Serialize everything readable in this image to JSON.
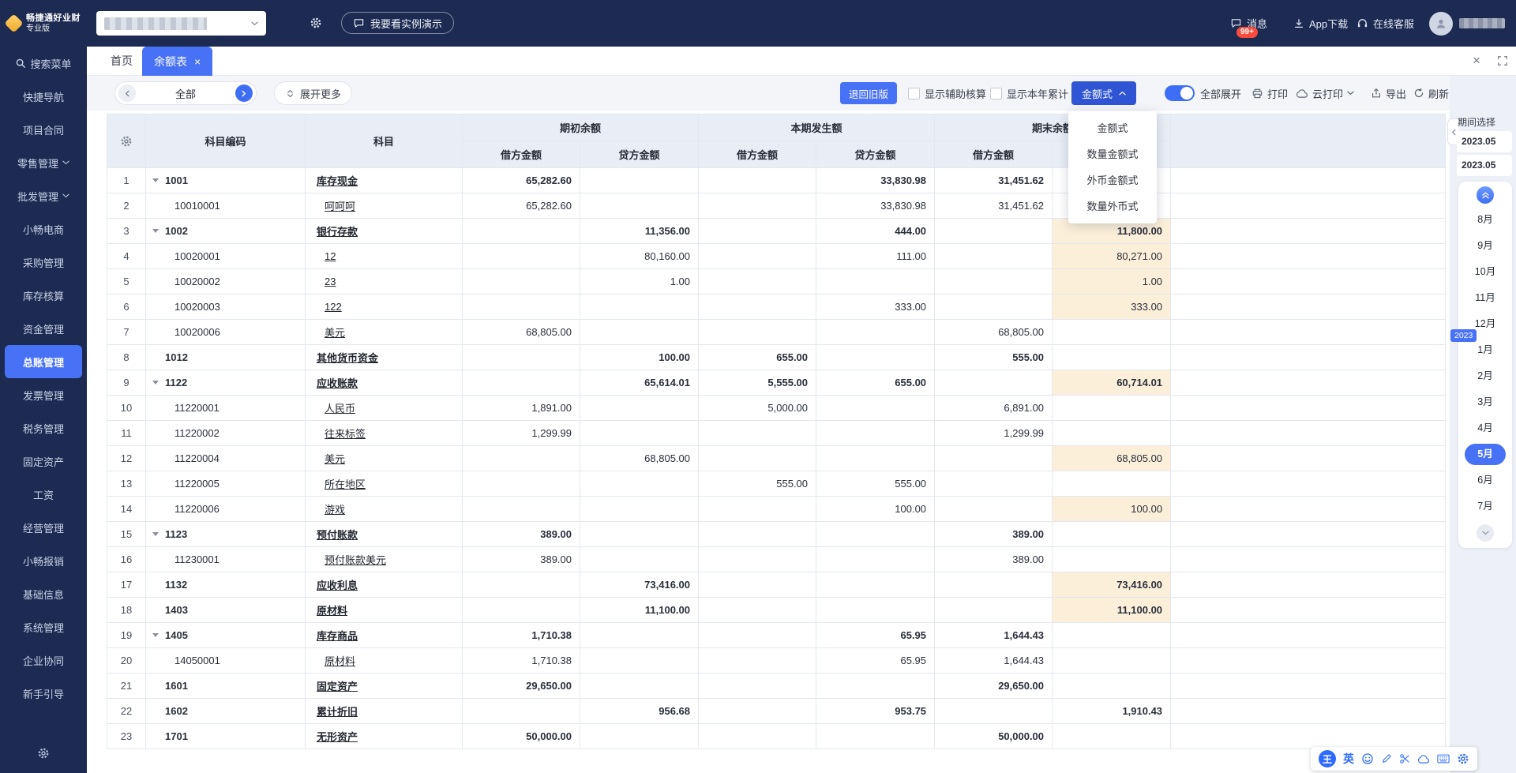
{
  "colors": {
    "accent": "#4872f5",
    "navy": "#1d2b52",
    "highlight_cell": "#fcefda",
    "format_button": "#2f54d4",
    "badge_red": "#fa4b3c"
  },
  "app": {
    "logo_title": "畅捷通好业财",
    "logo_subtitle": "专业版"
  },
  "topbar": {
    "demo_label": "我要看实例演示",
    "messages_label": "消息",
    "messages_badge": "99+",
    "download_label": "App下载",
    "support_label": "在线客服"
  },
  "sidebar": {
    "items": [
      {
        "label": "搜索菜单",
        "icon": "search"
      },
      {
        "label": "快捷导航"
      },
      {
        "label": "项目合同"
      },
      {
        "label": "零售管理",
        "caret": true
      },
      {
        "label": "批发管理",
        "caret": true
      },
      {
        "label": "小畅电商"
      },
      {
        "label": "采购管理"
      },
      {
        "label": "库存核算"
      },
      {
        "label": "资金管理"
      },
      {
        "label": "总账管理",
        "active": true
      },
      {
        "label": "发票管理"
      },
      {
        "label": "税务管理"
      },
      {
        "label": "固定资产"
      },
      {
        "label": "工资"
      },
      {
        "label": "经营管理"
      },
      {
        "label": "小畅报销"
      },
      {
        "label": "基础信息"
      },
      {
        "label": "系统管理"
      },
      {
        "label": "企业协同"
      },
      {
        "label": "新手引导"
      }
    ]
  },
  "tabs": [
    {
      "label": "首页",
      "active": false
    },
    {
      "label": "余额表",
      "active": true
    }
  ],
  "toolbar": {
    "account_filter_value": "全部",
    "expand_more_label": "展开更多",
    "back_to_old_label": "退回旧版",
    "show_aux_label": "显示辅助核算",
    "show_ytd_label": "显示本年累计",
    "format_label": "金额式",
    "expand_all_label": "全部展开",
    "print_label": "打印",
    "cloud_print_label": "云打印",
    "export_label": "导出",
    "refresh_label": "刷新"
  },
  "format_menu": [
    "金额式",
    "数量金额式",
    "外币金额式",
    "数量外币式"
  ],
  "table": {
    "headers": {
      "code": "科目编码",
      "name": "科目",
      "debit": "借方金额",
      "credit": "贷方金额"
    },
    "groups": [
      "期初余额",
      "本期发生额",
      "期末余额"
    ],
    "rows": [
      {
        "num": 1,
        "code": "1001",
        "name": "库存现金",
        "level": 0,
        "expand": true,
        "hl": false,
        "cells": [
          "65,282.60",
          "",
          "",
          "33,830.98",
          "31,451.62",
          ""
        ]
      },
      {
        "num": 2,
        "code": "10010001",
        "name": "呵呵呵",
        "level": 1,
        "expand": false,
        "hl": false,
        "cells": [
          "65,282.60",
          "",
          "",
          "33,830.98",
          "31,451.62",
          ""
        ]
      },
      {
        "num": 3,
        "code": "1002",
        "name": "银行存款",
        "level": 0,
        "expand": true,
        "hl": true,
        "cells": [
          "",
          "11,356.00",
          "",
          "444.00",
          "",
          "11,800.00"
        ]
      },
      {
        "num": 4,
        "code": "10020001",
        "name": "12",
        "level": 1,
        "expand": false,
        "hl": true,
        "cells": [
          "",
          "80,160.00",
          "",
          "111.00",
          "",
          "80,271.00"
        ]
      },
      {
        "num": 5,
        "code": "10020002",
        "name": "23",
        "level": 1,
        "expand": false,
        "hl": true,
        "cells": [
          "",
          "1.00",
          "",
          "",
          "",
          "1.00"
        ]
      },
      {
        "num": 6,
        "code": "10020003",
        "name": "122",
        "level": 1,
        "expand": false,
        "hl": true,
        "cells": [
          "",
          "",
          "",
          "333.00",
          "",
          "333.00"
        ]
      },
      {
        "num": 7,
        "code": "10020006",
        "name": "美元",
        "level": 1,
        "expand": false,
        "hl": false,
        "cells": [
          "68,805.00",
          "",
          "",
          "",
          "68,805.00",
          ""
        ]
      },
      {
        "num": 8,
        "code": "1012",
        "name": "其他货币资金",
        "level": 0,
        "expand": false,
        "hl": false,
        "cells": [
          "",
          "100.00",
          "655.00",
          "",
          "555.00",
          ""
        ]
      },
      {
        "num": 9,
        "code": "1122",
        "name": "应收账款",
        "level": 0,
        "expand": true,
        "hl": true,
        "cells": [
          "",
          "65,614.01",
          "5,555.00",
          "655.00",
          "",
          "60,714.01"
        ]
      },
      {
        "num": 10,
        "code": "11220001",
        "name": "人民币",
        "level": 1,
        "expand": false,
        "hl": false,
        "cells": [
          "1,891.00",
          "",
          "5,000.00",
          "",
          "6,891.00",
          ""
        ]
      },
      {
        "num": 11,
        "code": "11220002",
        "name": "往来标签",
        "level": 1,
        "expand": false,
        "hl": false,
        "cells": [
          "1,299.99",
          "",
          "",
          "",
          "1,299.99",
          ""
        ]
      },
      {
        "num": 12,
        "code": "11220004",
        "name": "美元",
        "level": 1,
        "expand": false,
        "hl": true,
        "cells": [
          "",
          "68,805.00",
          "",
          "",
          "",
          "68,805.00"
        ]
      },
      {
        "num": 13,
        "code": "11220005",
        "name": "所在地区",
        "level": 1,
        "expand": false,
        "hl": false,
        "cells": [
          "",
          "",
          "555.00",
          "555.00",
          "",
          ""
        ]
      },
      {
        "num": 14,
        "code": "11220006",
        "name": "游戏",
        "level": 1,
        "expand": false,
        "hl": true,
        "cells": [
          "",
          "",
          "",
          "100.00",
          "",
          "100.00"
        ]
      },
      {
        "num": 15,
        "code": "1123",
        "name": "预付账款",
        "level": 0,
        "expand": true,
        "hl": false,
        "cells": [
          "389.00",
          "",
          "",
          "",
          "389.00",
          ""
        ]
      },
      {
        "num": 16,
        "code": "11230001",
        "name": "预付账款美元",
        "level": 1,
        "expand": false,
        "hl": false,
        "cells": [
          "389.00",
          "",
          "",
          "",
          "389.00",
          ""
        ]
      },
      {
        "num": 17,
        "code": "1132",
        "name": "应收利息",
        "level": 0,
        "expand": false,
        "hl": true,
        "cells": [
          "",
          "73,416.00",
          "",
          "",
          "",
          "73,416.00"
        ]
      },
      {
        "num": 18,
        "code": "1403",
        "name": "原材料",
        "level": 0,
        "expand": false,
        "hl": true,
        "cells": [
          "",
          "11,100.00",
          "",
          "",
          "",
          "11,100.00"
        ]
      },
      {
        "num": 19,
        "code": "1405",
        "name": "库存商品",
        "level": 0,
        "expand": true,
        "hl": false,
        "cells": [
          "1,710.38",
          "",
          "",
          "65.95",
          "1,644.43",
          ""
        ]
      },
      {
        "num": 20,
        "code": "14050001",
        "name": "原材料",
        "level": 1,
        "expand": false,
        "hl": false,
        "cells": [
          "1,710.38",
          "",
          "",
          "65.95",
          "1,644.43",
          ""
        ]
      },
      {
        "num": 21,
        "code": "1601",
        "name": "固定资产",
        "level": 0,
        "expand": false,
        "hl": false,
        "cells": [
          "29,650.00",
          "",
          "",
          "",
          "29,650.00",
          ""
        ]
      },
      {
        "num": 22,
        "code": "1602",
        "name": "累计折旧",
        "level": 0,
        "expand": false,
        "hl": false,
        "cells": [
          "",
          "956.68",
          "",
          "953.75",
          "",
          "1,910.43"
        ]
      },
      {
        "num": 23,
        "code": "1701",
        "name": "无形资产",
        "level": 0,
        "expand": false,
        "hl": false,
        "cells": [
          "50,000.00",
          "",
          "",
          "",
          "50,000.00",
          ""
        ]
      }
    ]
  },
  "period_panel": {
    "title": "期间选择",
    "period_start": "2023.05",
    "period_end": "2023.05",
    "year_badge": "2023",
    "months": [
      "8月",
      "9月",
      "10月",
      "11月",
      "12月",
      "1月",
      "2月",
      "3月",
      "4月",
      "5月",
      "6月",
      "7月"
    ],
    "selected_month": "5月"
  },
  "ime_bar": {
    "engine": "王",
    "lang": "英"
  }
}
